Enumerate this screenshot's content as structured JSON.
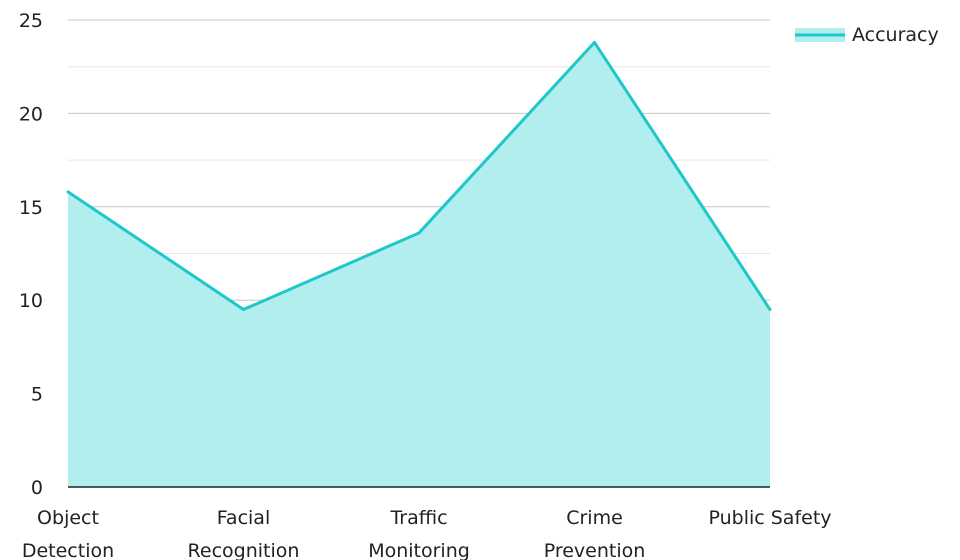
{
  "chart_data": {
    "type": "area",
    "categories": [
      [
        "Object",
        "Detection"
      ],
      [
        "Facial",
        "Recognition"
      ],
      [
        "Traffic",
        "Monitoring"
      ],
      [
        "Crime",
        "Prevention"
      ],
      [
        "Public Safety"
      ]
    ],
    "series": [
      {
        "name": "Accuracy",
        "values": [
          15.8,
          9.5,
          13.6,
          23.8,
          9.5
        ]
      }
    ],
    "y_ticks": [
      "0",
      "5",
      "10",
      "15",
      "20",
      "25"
    ],
    "ylim": [
      0,
      25
    ],
    "title": "",
    "xlabel": "",
    "ylabel": "",
    "grid": true,
    "legend_position": "top-right",
    "colors": {
      "line": "#1fc8c8",
      "fill": "#b2eeee",
      "grid_major": "#c8c8c8",
      "grid_minor": "#e6e6e6",
      "axis": "#222222"
    }
  }
}
